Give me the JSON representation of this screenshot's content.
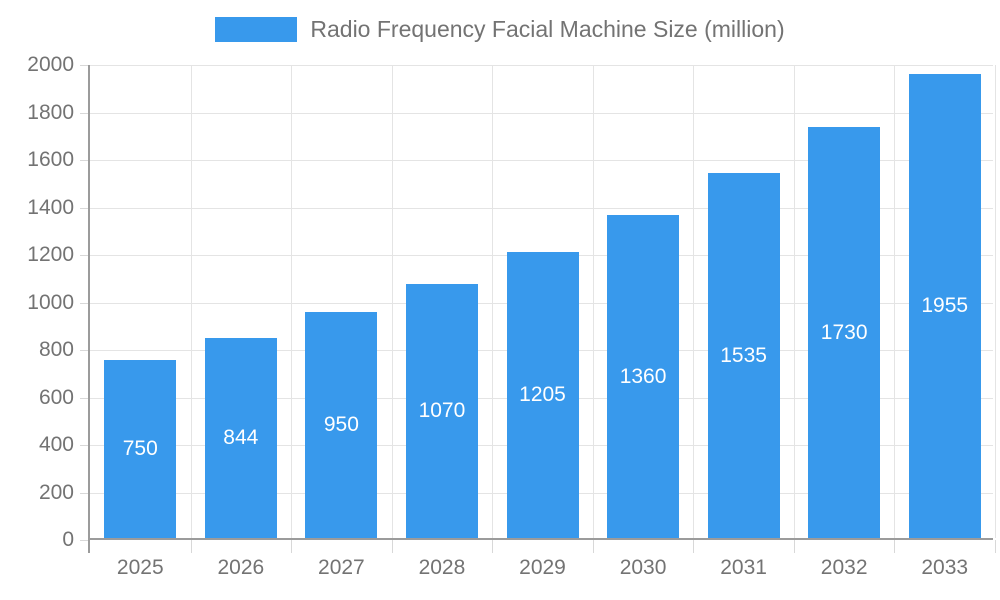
{
  "legend": {
    "label": "Radio Frequency Facial Machine Size (million)"
  },
  "colors": {
    "bar": "#3899EC",
    "bar_label": "#FFFFFF",
    "axis": "#9B9B9B",
    "gridline": "#E4E4E4",
    "tick": "#D8D8D8",
    "text": "#737373",
    "background": "#FFFFFF"
  },
  "chart_data": {
    "type": "bar",
    "title": "Radio Frequency Facial Machine Size (million)",
    "categories": [
      "2025",
      "2026",
      "2027",
      "2028",
      "2029",
      "2030",
      "2031",
      "2032",
      "2033"
    ],
    "values": [
      750,
      844,
      950,
      1070,
      1205,
      1360,
      1535,
      1730,
      1955
    ],
    "xlabel": "",
    "ylabel": "",
    "ylim": [
      0,
      2000
    ],
    "ytick_step": 200,
    "y_ticks": [
      "0",
      "200",
      "400",
      "600",
      "800",
      "1000",
      "1200",
      "1400",
      "1600",
      "1800",
      "2000"
    ],
    "grid": true,
    "legend_position": "top",
    "bar_value_labels_shown": true,
    "bar_value_label_position": "center"
  }
}
